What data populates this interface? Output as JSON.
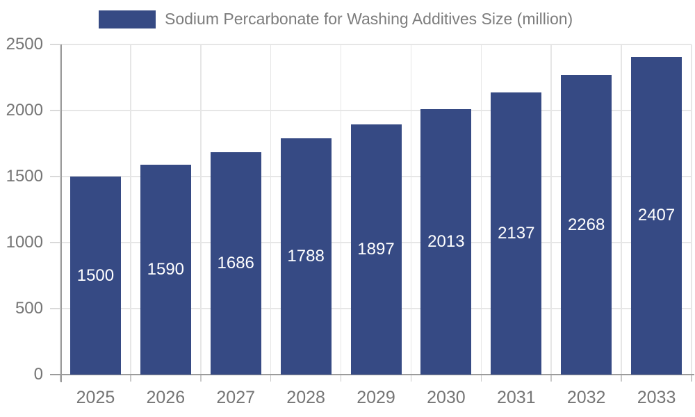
{
  "chart_data": {
    "type": "bar",
    "title": "Sodium Percarbonate for Washing Additives Size (million)",
    "legend_position": "top",
    "categories": [
      "2025",
      "2026",
      "2027",
      "2028",
      "2029",
      "2030",
      "2031",
      "2032",
      "2033"
    ],
    "values": [
      1500,
      1590,
      1686,
      1788,
      1897,
      2013,
      2137,
      2268,
      2407
    ],
    "xlabel": "",
    "ylabel": "",
    "ylim": [
      0,
      2500
    ],
    "yticks": [
      0,
      500,
      1000,
      1500,
      2000,
      2500
    ],
    "grid": true,
    "value_labels": "inside-center",
    "colors": {
      "bar": "#364A84",
      "grid": "#e6e6e6",
      "axis": "#9b9b9b",
      "tick_label": "#757575",
      "legend_text": "#7d7d7d",
      "value_label": "#ffffff",
      "background": "#ffffff"
    }
  }
}
